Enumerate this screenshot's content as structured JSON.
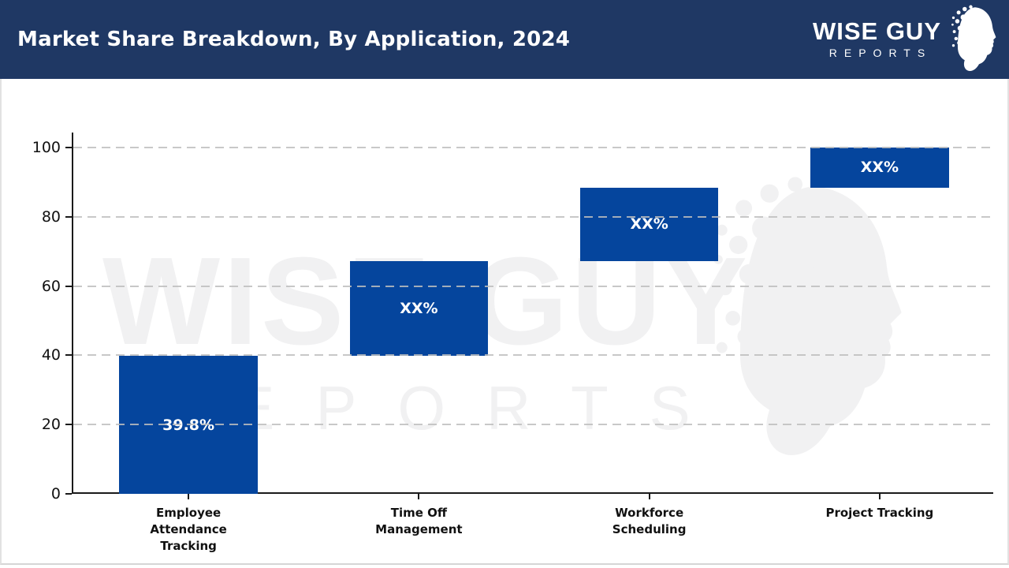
{
  "header": {
    "title": "Market Share Breakdown, By Application, 2024",
    "logo": {
      "line1": "WISE GUY",
      "line2": "REPORTS"
    }
  },
  "watermark": {
    "line1": "WISE GUY",
    "line2": "REPORTS"
  },
  "chart_data": {
    "type": "bar",
    "subtype": "floating-waterfall",
    "title": "Market Share Breakdown, By Application, 2024",
    "categories": [
      "Employee Attendance Tracking",
      "Time Off Management",
      "Workforce Scheduling",
      "Project Tracking"
    ],
    "category_label_lines": [
      [
        "Employee",
        "Attendance",
        "Tracking"
      ],
      [
        "Time Off",
        "Management"
      ],
      [
        "Workforce",
        "Scheduling"
      ],
      [
        "Project Tracking"
      ]
    ],
    "segments": [
      {
        "category": "Employee Attendance Tracking",
        "start": 0,
        "end": 39.8,
        "label": "39.8%"
      },
      {
        "category": "Time Off Management",
        "start": 39.8,
        "end": 67.2,
        "label": "XX%"
      },
      {
        "category": "Workforce Scheduling",
        "start": 67.2,
        "end": 88.4,
        "label": "XX%"
      },
      {
        "category": "Project Tracking",
        "start": 88.4,
        "end": 100,
        "label": "XX%"
      }
    ],
    "unit": "%",
    "xlabel": "",
    "ylabel": "",
    "ylim": [
      0,
      100
    ],
    "yticks": [
      0,
      20,
      40,
      60,
      80,
      100
    ],
    "grid": "horizontal-dashed",
    "legend": "none",
    "bar_color": "#05459d",
    "bar_label_color": "#ffffff",
    "axis_color": "#1a1a1a",
    "grid_color": "#d9d9d9"
  }
}
